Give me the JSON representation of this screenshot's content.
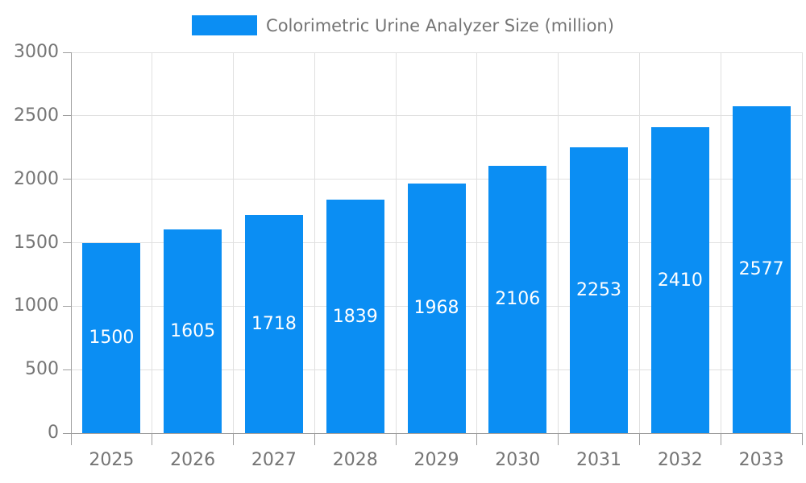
{
  "legend": {
    "label": "Colorimetric Urine Analyzer Size (million)"
  },
  "chart_data": {
    "type": "bar",
    "title": "Colorimetric Urine Analyzer Size (million)",
    "series_name": "Colorimetric Urine Analyzer Size (million)",
    "categories": [
      "2025",
      "2026",
      "2027",
      "2028",
      "2029",
      "2030",
      "2031",
      "2032",
      "2033"
    ],
    "values": [
      1500,
      1605,
      1718,
      1839,
      1968,
      2106,
      2253,
      2410,
      2577
    ],
    "xlabel": "",
    "ylabel": "",
    "ylim": [
      0,
      3000
    ],
    "yticks": [
      0,
      500,
      1000,
      1500,
      2000,
      2500,
      3000
    ],
    "grid": true,
    "legend_position": "top-center",
    "value_labels": "inside-center",
    "colors": {
      "bar": "#0b8ef3",
      "value_label": "#ffffff",
      "axis_text": "#757575",
      "legend_text": "#757575",
      "grid_line": "#e0e0e0",
      "axis_line": "#9e9e9e",
      "background": "#ffffff"
    }
  }
}
